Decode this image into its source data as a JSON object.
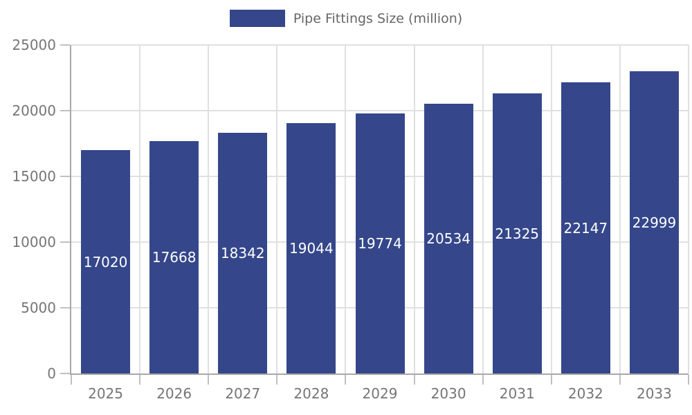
{
  "legend": {
    "label": "Pipe Fittings Size (million)"
  },
  "chart_data": {
    "type": "bar",
    "title": "",
    "categories": [
      "2025",
      "2026",
      "2027",
      "2028",
      "2029",
      "2030",
      "2031",
      "2032",
      "2033"
    ],
    "series": [
      {
        "name": "Pipe Fittings Size (million)",
        "values": [
          17020,
          17668,
          18342,
          19044,
          19774,
          20534,
          21325,
          22147,
          22999
        ]
      }
    ],
    "values": [
      17020,
      17668,
      18342,
      19044,
      19774,
      20534,
      21325,
      22147,
      22999
    ],
    "value_labels_shown": true,
    "xlabel": "",
    "ylabel": "",
    "ylim": [
      0,
      25000
    ],
    "y_ticks": [
      0,
      5000,
      10000,
      15000,
      20000,
      25000
    ],
    "grid": true,
    "legend_position": "top-center",
    "colors": {
      "bar": "#35478A",
      "grid": "#e0e0e0",
      "axis": "#a8a8a8",
      "tick": "#c0c0c0",
      "tick_label": "#757575",
      "value_label": "#ffffff",
      "background": "#ffffff"
    }
  }
}
